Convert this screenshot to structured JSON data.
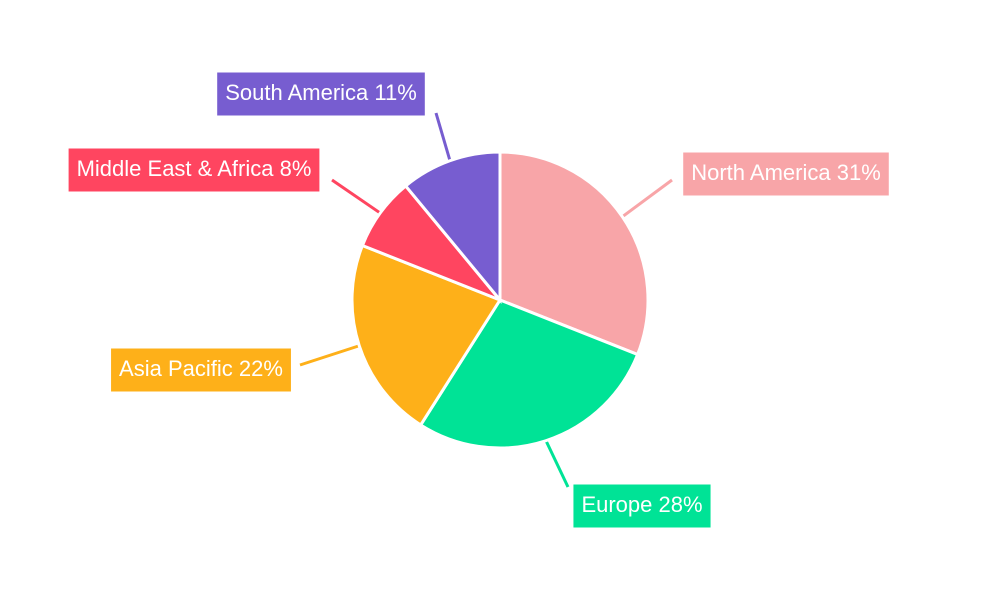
{
  "chart_data": {
    "type": "pie",
    "categories": [
      "North America",
      "Europe",
      "Asia Pacific",
      "Middle East & Africa",
      "South America"
    ],
    "values": [
      31,
      28,
      22,
      8,
      11
    ],
    "value_labels": [
      "31%",
      "28%",
      "22%",
      "8%",
      "11%"
    ],
    "colors": [
      "#f8a5a8",
      "#00e396",
      "#feb019",
      "#ff4560",
      "#775dd0"
    ]
  }
}
